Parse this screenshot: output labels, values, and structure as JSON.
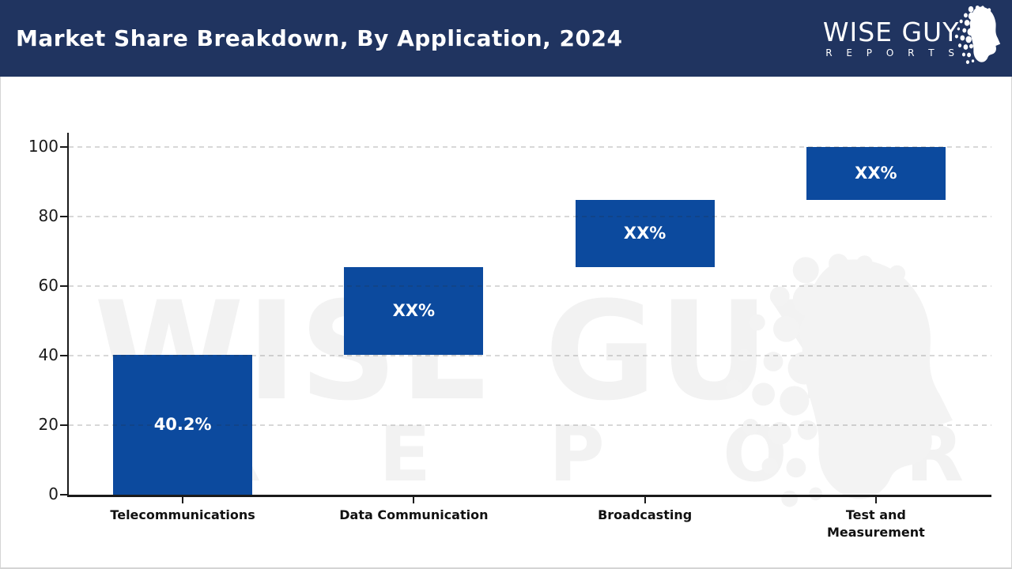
{
  "header": {
    "title": "Market Share Breakdown, By Application, 2024",
    "logo": {
      "line1": "WISE GUY",
      "line2": "R E P O R T S"
    }
  },
  "watermark": {
    "line1": "WISE GUY",
    "line2": "R E P O R T S"
  },
  "colors": {
    "header_bg": "#203460",
    "bar": "#0c4a9e",
    "bar_label_text": "#ffffff",
    "title_text": "#ffffff"
  },
  "chart_data": {
    "type": "bar",
    "subtype": "waterfall",
    "title": "Market Share Breakdown, By Application, 2024",
    "categories": [
      "Telecommunications",
      "Data Communication",
      "Broadcasting",
      "Test and\nMeasurement"
    ],
    "segments": [
      {
        "category": "Telecommunications",
        "start": 0,
        "end": 40.2,
        "label": "40.2%"
      },
      {
        "category": "Data Communication",
        "start": 40.2,
        "end": 65.5,
        "label": "XX%"
      },
      {
        "category": "Broadcasting",
        "start": 65.5,
        "end": 84.8,
        "label": "XX%"
      },
      {
        "category": "Test and Measurement",
        "start": 84.8,
        "end": 100,
        "label": "XX%"
      }
    ],
    "yticks": [
      0,
      20,
      40,
      60,
      80,
      100
    ],
    "ylim": [
      0,
      105
    ],
    "grid": "horizontal-dashed",
    "gridlines_over_bars": true,
    "legend": "none",
    "bar_color": "#0c4a9e"
  }
}
